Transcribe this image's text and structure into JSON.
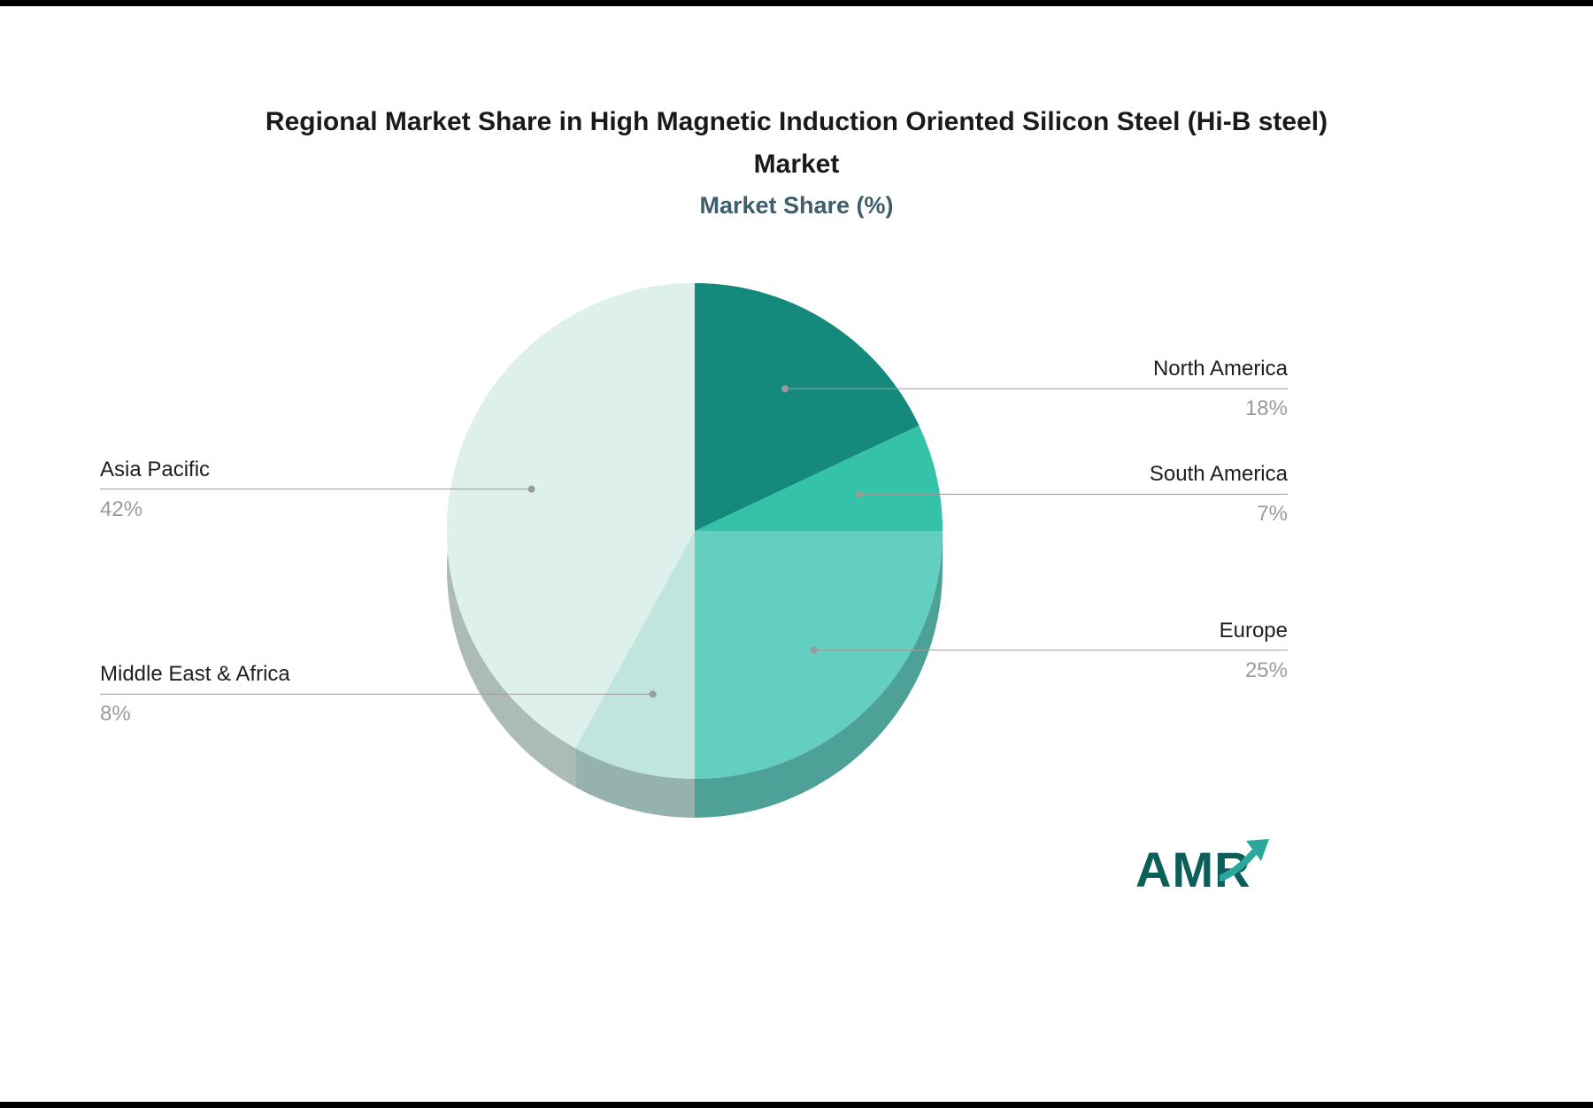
{
  "title": {
    "line1": "Regional Market Share in High Magnetic Induction Oriented Silicon Steel (Hi-B steel)",
    "line2": "Market"
  },
  "subtitle": "Market Share (%)",
  "logo_text": "AMR",
  "chart_data": {
    "type": "pie",
    "title": "Regional Market Share in High Magnetic Induction Oriented Silicon Steel (Hi-B steel) Market",
    "subtitle": "Market Share (%)",
    "unit": "%",
    "start_angle_deg": 0,
    "direction": "clockwise",
    "legend_position": "none",
    "style": "pseudo-3d",
    "slices": [
      {
        "label": "North America",
        "value": 18,
        "value_label": "18%",
        "color": "#15897c",
        "label_side": "right"
      },
      {
        "label": "South America",
        "value": 7,
        "value_label": "7%",
        "color": "#34c3a9",
        "label_side": "right"
      },
      {
        "label": "Europe",
        "value": 25,
        "value_label": "25%",
        "color": "#63cfc0",
        "label_side": "right"
      },
      {
        "label": "Middle East & Africa",
        "value": 8,
        "value_label": "8%",
        "color": "#bfe5dd",
        "label_side": "left"
      },
      {
        "label": "Asia Pacific",
        "value": 42,
        "value_label": "42%",
        "color": "#def0ec",
        "label_side": "left"
      }
    ]
  },
  "colors": {
    "background": "#ffffff",
    "title": "#1a1a1a",
    "subtitle": "#3f5e6b",
    "label_text": "#1e1e1e",
    "value_text": "#9b9b9b",
    "leader_line": "#9b9b9b",
    "logo": "#0c5f58",
    "logo_arrow": "#2ba89b"
  }
}
